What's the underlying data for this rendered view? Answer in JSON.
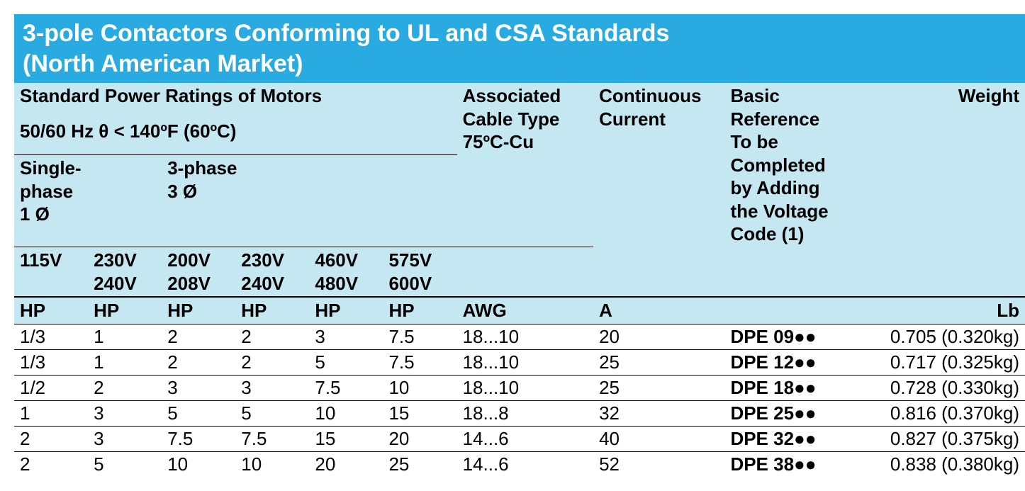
{
  "title_line1": "3-pole Contactors Conforming to UL and CSA Standards",
  "title_line2": "(North American Market)",
  "hdr": {
    "spr_l1": "Standard Power Ratings of Motors",
    "spr_l2": "50/60 Hz θ < 140ºF (60ºC)",
    "single_l1": "Single-",
    "single_l2": "phase",
    "single_l3": "1 Ø",
    "three_l1": "3-phase",
    "three_l2": "3 Ø",
    "cable_l1": "Associated",
    "cable_l2": "Cable Type",
    "cable_l3": "75ºC-Cu",
    "curr_l1": "Continuous",
    "curr_l2": "Current",
    "ref_l1": "Basic",
    "ref_l2": "Reference",
    "ref_l3": "To be",
    "ref_l4": "Completed",
    "ref_l5": "by Adding",
    "ref_l6": "the Voltage",
    "ref_l7": "Code (1)",
    "weight": "Weight",
    "v1": "115V",
    "v2a": "230V",
    "v2b": "240V",
    "v3a": "200V",
    "v3b": "208V",
    "v4a": "230V",
    "v4b": "240V",
    "v5a": "460V",
    "v5b": "480V",
    "v6a": "575V",
    "v6b": "600V",
    "u_hp": "HP",
    "u_awg": "AWG",
    "u_a": "A",
    "u_lb": "Lb"
  },
  "rows": [
    {
      "c": [
        "1/3",
        "1",
        "2",
        "2",
        "3",
        "7.5",
        "18...10",
        "20",
        "DPE 09●●",
        "0.705 (0.320kg)"
      ]
    },
    {
      "c": [
        "1/3",
        "1",
        "2",
        "2",
        "5",
        "7.5",
        "18...10",
        "25",
        "DPE 12●●",
        "0.717 (0.325kg)"
      ]
    },
    {
      "c": [
        "1/2",
        "2",
        "3",
        "3",
        "7.5",
        "10",
        "18...10",
        "25",
        "DPE 18●●",
        "0.728 (0.330kg)"
      ]
    },
    {
      "c": [
        "1",
        "3",
        "5",
        "5",
        "10",
        "15",
        "18...8",
        "32",
        "DPE 25●●",
        "0.816 (0.370kg)"
      ]
    },
    {
      "c": [
        "2",
        "3",
        "7.5",
        "7.5",
        "15",
        "20",
        "14...6",
        "40",
        "DPE 32●●",
        "0.827 (0.375kg)"
      ]
    },
    {
      "c": [
        "2",
        "5",
        "10",
        "10",
        "20",
        "25",
        "14...6",
        "52",
        "DPE 38●●",
        "0.838 (0.380kg)"
      ]
    }
  ]
}
